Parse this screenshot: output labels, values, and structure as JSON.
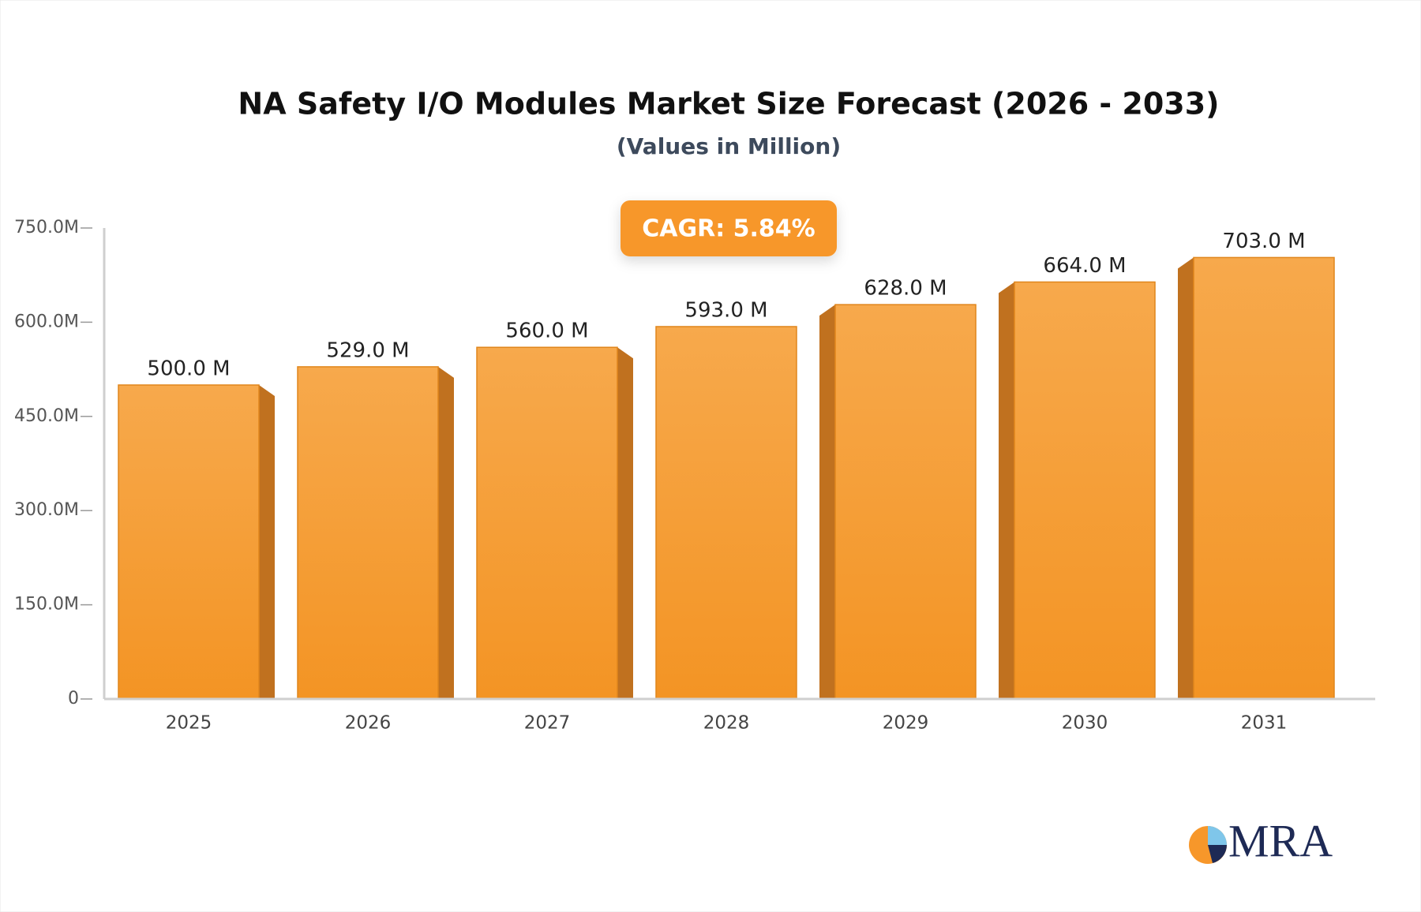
{
  "chart_data": {
    "type": "bar",
    "title": "NA Safety I/O Modules Market Size Forecast (2026 - 2033)",
    "subtitle": "(Values in Million)",
    "annotation": "CAGR: 5.84%",
    "categories": [
      "2025",
      "2026",
      "2027",
      "2028",
      "2029",
      "2030",
      "2031"
    ],
    "values": [
      500,
      529,
      560,
      593,
      628,
      664,
      703
    ],
    "value_labels": [
      "500.0 M",
      "529.0 M",
      "560.0 M",
      "593.0 M",
      "628.0 M",
      "664.0 M",
      "703.0 M"
    ],
    "color": "#f5a03c",
    "ylim": [
      0,
      750
    ],
    "yticks": [
      0,
      {
        "value": 150,
        "label": "150.0M"
      },
      {
        "value": 300,
        "label": "300.0M"
      },
      {
        "value": 450,
        "label": "450.0M"
      },
      {
        "value": 600,
        "label": "600.0M"
      },
      {
        "value": 750,
        "label": "750.0M"
      }
    ],
    "grid": false
  },
  "logo": "MRA"
}
